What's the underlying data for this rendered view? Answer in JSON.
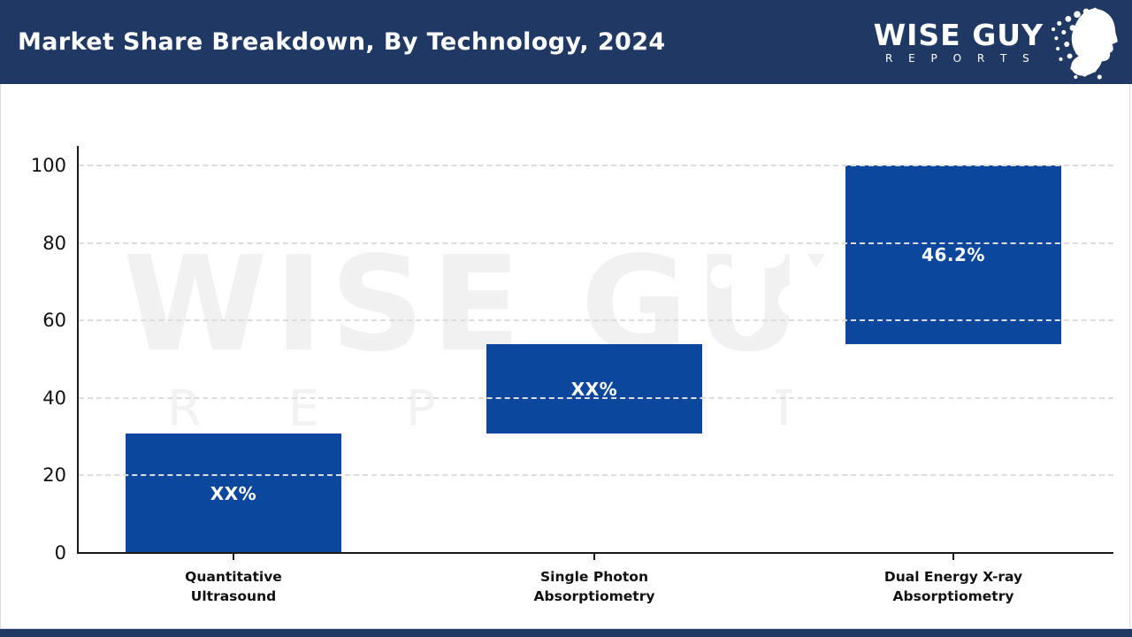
{
  "header": {
    "title": "Market Share Breakdown, By Technology, 2024",
    "logo": {
      "wordmark": "WISE GUY",
      "subtitle": "R E P O R T S"
    }
  },
  "watermark": {
    "wordmark": "WISE GUY",
    "subtitle": "R E P O R T S"
  },
  "colors": {
    "header_bg": "#1F3864",
    "bar": "#0B479D",
    "grid": "#DCDCDC",
    "axis": "#1A1A1A",
    "bar_label": "#FFFFFF",
    "watermark": "#F1F1F1"
  },
  "chart_data": {
    "type": "bar",
    "subtype": "waterfall-stacked",
    "title": "Market Share Breakdown, By Technology, 2024",
    "categories": [
      "Quantitative\nUltrasound",
      "Single Photon\nAbsorptiometry",
      "Dual Energy X-ray\nAbsorptiometry"
    ],
    "segments": [
      {
        "category": "Quantitative Ultrasound",
        "start": 0,
        "end": 30.8,
        "value": 30.8,
        "value_label": "XX%"
      },
      {
        "category": "Single Photon Absorptiometry",
        "start": 30.8,
        "end": 53.8,
        "value": 23.0,
        "value_label": "XX%"
      },
      {
        "category": "Dual Energy X-ray Absorptiometry",
        "start": 53.8,
        "end": 100,
        "value": 46.2,
        "value_label": "46.2%"
      }
    ],
    "xlabel": "",
    "ylabel": "",
    "yticks": [
      0,
      20,
      40,
      60,
      80,
      100
    ],
    "ylim": [
      0,
      107
    ],
    "grid": "horizontal-dashed",
    "legend": "none"
  }
}
